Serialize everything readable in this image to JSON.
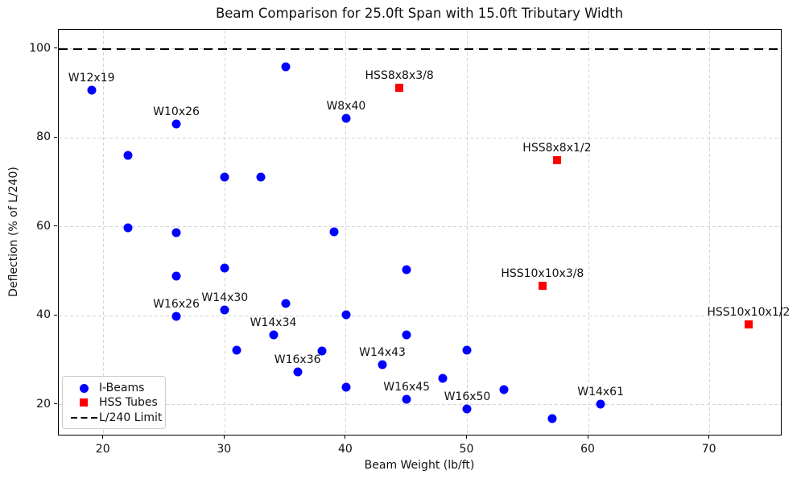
{
  "chart_data": {
    "type": "scatter",
    "title": "Beam Comparison for 25.0ft Span with 15.0ft Tributary Width",
    "xlabel": "Beam Weight (lb/ft)",
    "ylabel": "Deflection (% of L/240)",
    "xlim": [
      16.3,
      76.0
    ],
    "ylim": [
      12.9,
      104.3
    ],
    "xticks": [
      20,
      30,
      40,
      50,
      60,
      70
    ],
    "yticks": [
      20,
      40,
      60,
      80,
      100
    ],
    "grid": true,
    "legend_position": "lower-left",
    "limit_line": {
      "label": "L/240 Limit",
      "y": 100,
      "color": "#000000",
      "style": "dashed"
    },
    "series": [
      {
        "name": "I-Beams",
        "marker": "circle",
        "color": "#0000ff",
        "points": [
          {
            "x": 19,
            "y": 90.7,
            "label": "W12x19"
          },
          {
            "x": 22,
            "y": 76.1
          },
          {
            "x": 26,
            "y": 83.2,
            "label": "W10x26"
          },
          {
            "x": 22,
            "y": 59.8
          },
          {
            "x": 26,
            "y": 58.7
          },
          {
            "x": 30,
            "y": 71.2
          },
          {
            "x": 33,
            "y": 71.1
          },
          {
            "x": 35,
            "y": 96.0
          },
          {
            "x": 40,
            "y": 84.4,
            "label": "W8x40"
          },
          {
            "x": 39,
            "y": 58.9
          },
          {
            "x": 26,
            "y": 49.0
          },
          {
            "x": 30,
            "y": 50.8
          },
          {
            "x": 30,
            "y": 41.4,
            "label": "W14x30"
          },
          {
            "x": 26,
            "y": 39.8,
            "label": "W16x26"
          },
          {
            "x": 35,
            "y": 42.8
          },
          {
            "x": 40,
            "y": 40.3
          },
          {
            "x": 34,
            "y": 35.7,
            "label": "W14x34"
          },
          {
            "x": 31,
            "y": 32.3
          },
          {
            "x": 38,
            "y": 32.0
          },
          {
            "x": 36,
            "y": 27.4,
            "label": "W16x36"
          },
          {
            "x": 43,
            "y": 29.0,
            "label": "W14x43"
          },
          {
            "x": 40,
            "y": 24.0
          },
          {
            "x": 45,
            "y": 50.3
          },
          {
            "x": 45,
            "y": 35.7
          },
          {
            "x": 50,
            "y": 32.3
          },
          {
            "x": 48,
            "y": 26.0
          },
          {
            "x": 45,
            "y": 21.3,
            "label": "W16x45"
          },
          {
            "x": 53,
            "y": 23.4
          },
          {
            "x": 50,
            "y": 19.1,
            "label": "W16x50"
          },
          {
            "x": 57,
            "y": 16.9
          },
          {
            "x": 61,
            "y": 20.1,
            "label": "W14x61"
          }
        ]
      },
      {
        "name": "HSS Tubes",
        "marker": "square",
        "color": "#ff0000",
        "points": [
          {
            "x": 44.4,
            "y": 91.3,
            "label": "HSS8x8x3/8"
          },
          {
            "x": 57.4,
            "y": 74.9,
            "label": "HSS8x8x1/2"
          },
          {
            "x": 56.2,
            "y": 46.7,
            "label": "HSS10x10x3/8"
          },
          {
            "x": 73.2,
            "y": 38.1,
            "label": "HSS10x10x1/2"
          }
        ]
      }
    ]
  }
}
